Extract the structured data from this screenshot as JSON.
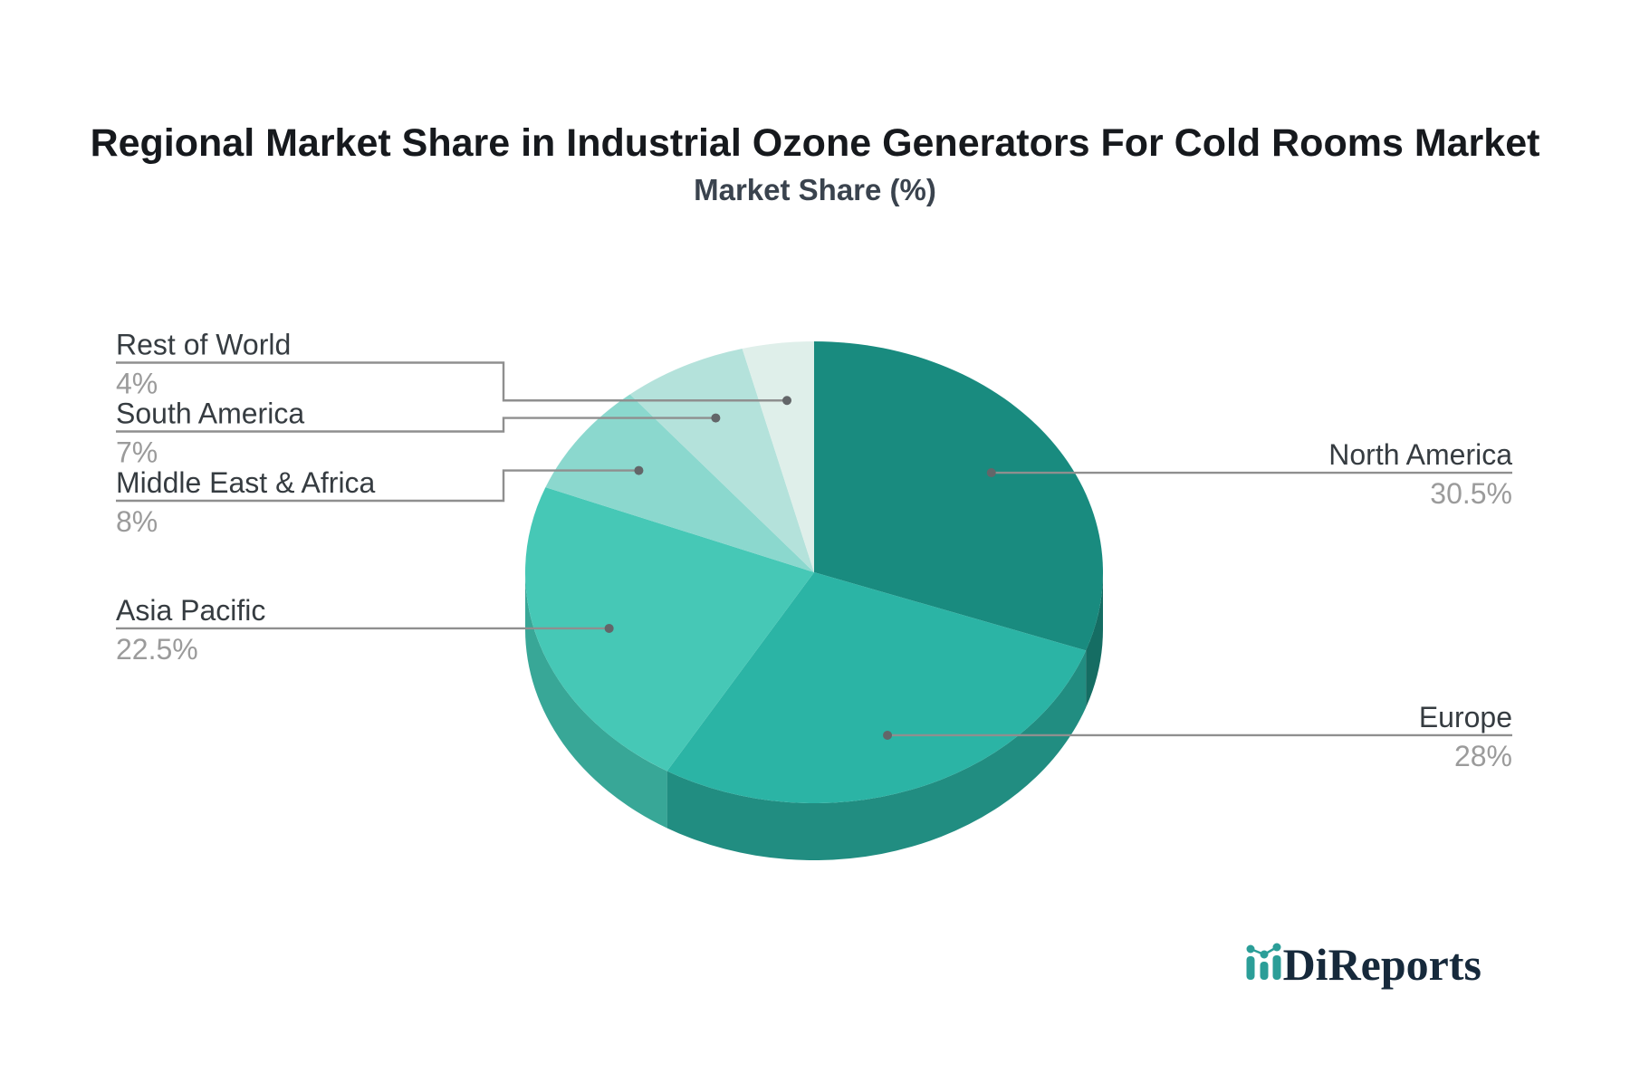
{
  "title": "Regional Market Share in Industrial Ozone Generators For Cold Rooms Market",
  "subtitle": "Market Share (%)",
  "chart_data": {
    "type": "pie",
    "title": "Regional Market Share in Industrial Ozone Generators For Cold Rooms Market",
    "subtitle": "Market Share (%)",
    "unit": "%",
    "start_angle_deg": 0,
    "direction": "clockwise",
    "effect": "3d",
    "slices": [
      {
        "label": "North America",
        "value": 30.5,
        "display": "30.5%",
        "color": "#198b7f",
        "side_color": "#156d63",
        "label_side": "right"
      },
      {
        "label": "Europe",
        "value": 28,
        "display": "28%",
        "color": "#2bb4a5",
        "side_color": "#218d81",
        "label_side": "right"
      },
      {
        "label": "Asia Pacific",
        "value": 22.5,
        "display": "22.5%",
        "color": "#46c8b6",
        "side_color": "#38a797",
        "label_side": "left"
      },
      {
        "label": "Middle East & Africa",
        "value": 8,
        "display": "8%",
        "color": "#8bd8ce",
        "side_color": "#6fbdb2",
        "label_side": "left"
      },
      {
        "label": "South America",
        "value": 7,
        "display": "7%",
        "color": "#b4e2db",
        "side_color": "#8fc9c1",
        "label_side": "left"
      },
      {
        "label": "Rest of World",
        "value": 4,
        "display": "4%",
        "color": "#dfefea",
        "side_color": "#bedcd6",
        "label_side": "left"
      }
    ]
  },
  "style": {
    "background": "#ffffff",
    "title_color": "#16191d",
    "subtitle_color": "#3a434e",
    "label_color": "#363c41",
    "percent_color": "#9b9b9b",
    "connector_color": "#8f8f8f",
    "connector_dot_color": "#636669",
    "logo_text_color": "#16293b",
    "logo_icon_color": "#2b9e98"
  },
  "logo": {
    "text": "DiReports"
  }
}
